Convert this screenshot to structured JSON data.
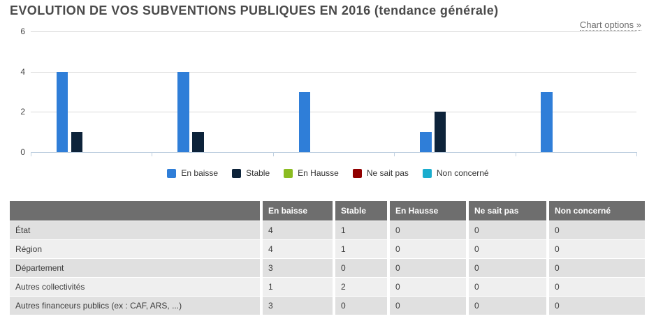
{
  "header": {
    "title": "EVOLUTION DE VOS SUBVENTIONS PUBLIQUES EN 2016 (tendance générale)",
    "chart_options_label": "Chart options »"
  },
  "chart_data": {
    "type": "bar",
    "title": "EVOLUTION DE VOS SUBVENTIONS PUBLIQUES EN 2016 (tendance générale)",
    "categories": [
      "État",
      "Région",
      "Département",
      "Autres collectivités",
      "Autres financeurs publics (ex : CAF, ARS, ...)"
    ],
    "series": [
      {
        "name": "En baisse",
        "color": "#2f7ed8",
        "values": [
          4,
          4,
          3,
          1,
          3
        ]
      },
      {
        "name": "Stable",
        "color": "#0d233a",
        "values": [
          1,
          1,
          0,
          2,
          0
        ]
      },
      {
        "name": "En Hausse",
        "color": "#8bbc21",
        "values": [
          0,
          0,
          0,
          0,
          0
        ]
      },
      {
        "name": "Ne sait pas",
        "color": "#910000",
        "values": [
          0,
          0,
          0,
          0,
          0
        ]
      },
      {
        "name": "Non concerné",
        "color": "#1aadce",
        "values": [
          0,
          0,
          0,
          0,
          0
        ]
      }
    ],
    "xlabel": "",
    "ylabel": "",
    "ylim": [
      0,
      6
    ],
    "yticks": [
      0,
      2,
      4,
      6
    ],
    "x_tick_labels_visible": false,
    "grid": true,
    "legend_position": "bottom-center"
  },
  "table": {
    "columns": [
      "",
      "En baisse",
      "Stable",
      "En Hausse",
      "Ne sait pas",
      "Non concerné"
    ],
    "rows": [
      {
        "label": "État",
        "values": [
          "4",
          "1",
          "0",
          "0",
          "0"
        ]
      },
      {
        "label": "Région",
        "values": [
          "4",
          "1",
          "0",
          "0",
          "0"
        ]
      },
      {
        "label": "Département",
        "values": [
          "3",
          "0",
          "0",
          "0",
          "0"
        ]
      },
      {
        "label": "Autres collectivités",
        "values": [
          "1",
          "2",
          "0",
          "0",
          "0"
        ]
      },
      {
        "label": "Autres financeurs publics (ex : CAF, ARS, ...)",
        "values": [
          "3",
          "0",
          "0",
          "0",
          "0"
        ]
      }
    ]
  }
}
